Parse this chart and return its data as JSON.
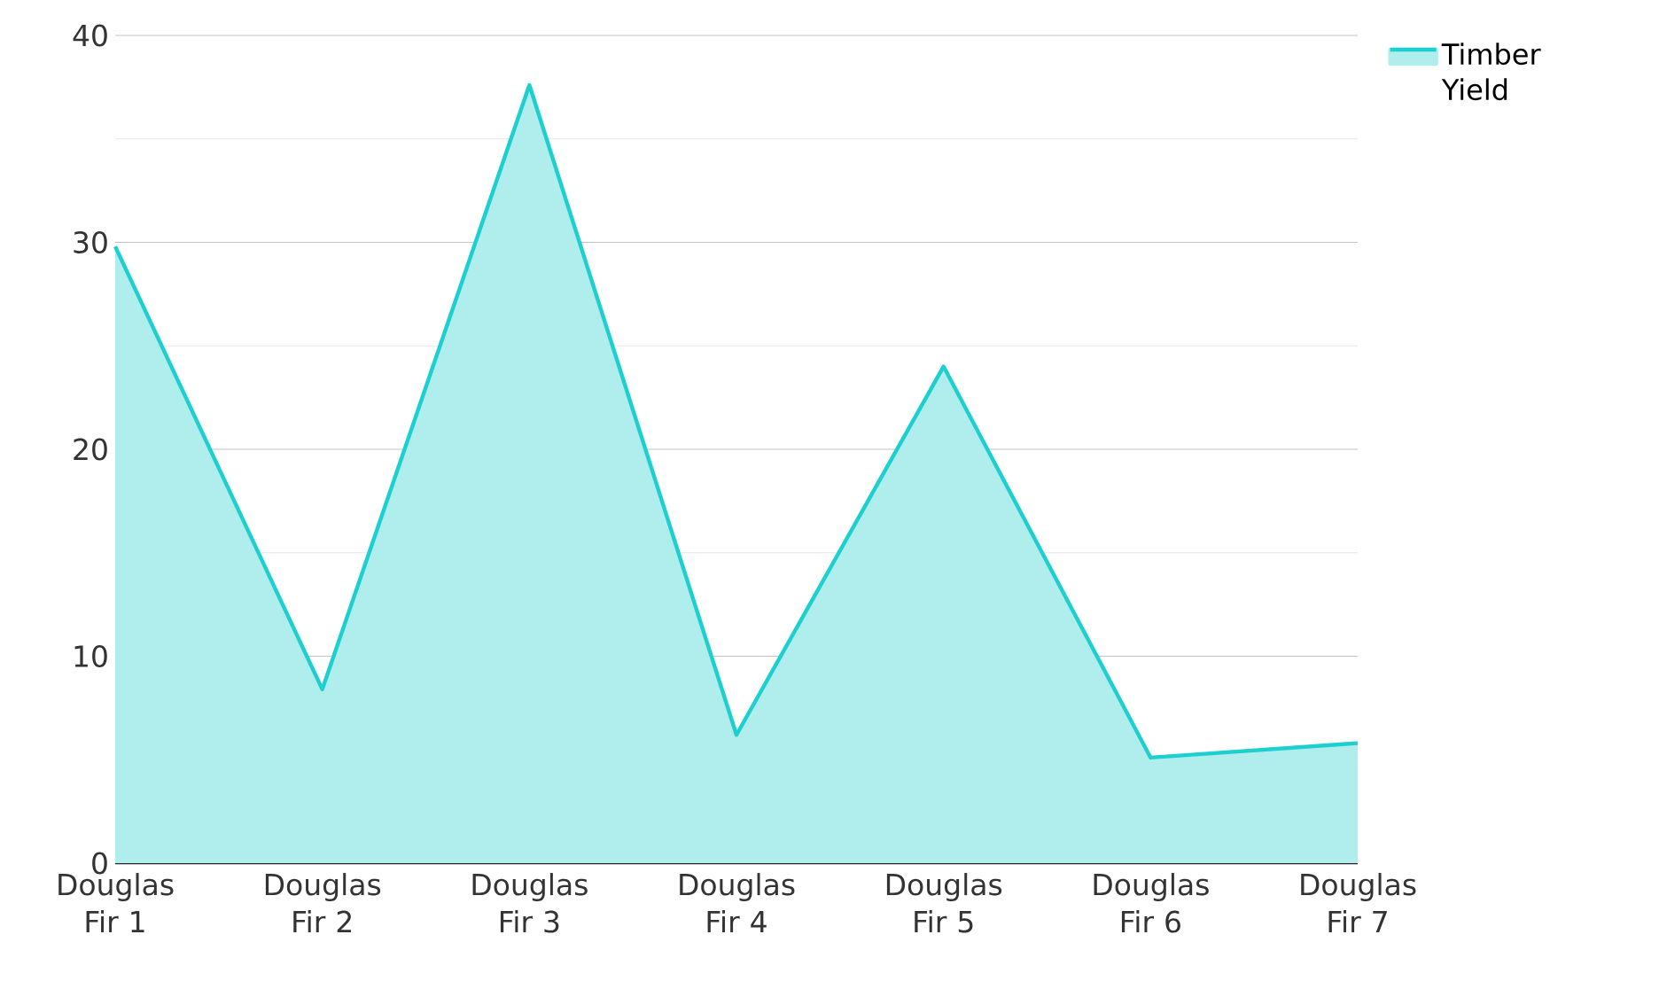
{
  "chart_data": {
    "type": "area",
    "categories": [
      "Douglas Fir 1",
      "Douglas Fir 2",
      "Douglas Fir 3",
      "Douglas Fir 4",
      "Douglas Fir 5",
      "Douglas Fir 6",
      "Douglas Fir 7"
    ],
    "series": [
      {
        "name": "Timber Yield",
        "color": "#1ecfcf",
        "values": [
          29.8,
          8.4,
          37.6,
          6.2,
          24.0,
          5.1,
          5.8
        ]
      }
    ],
    "ylim": [
      0,
      40
    ],
    "yticks": [
      0,
      10,
      20,
      30,
      40
    ],
    "grid": "y",
    "legend": "top right"
  }
}
